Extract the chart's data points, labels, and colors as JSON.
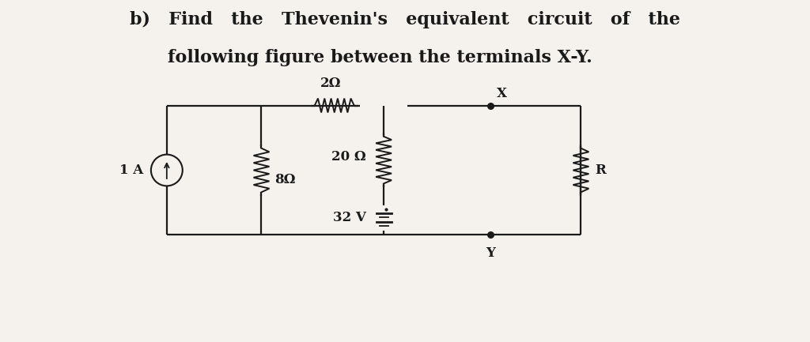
{
  "title_line1": "b)   Find   the   Thevenin's   equivalent   circuit   of   the",
  "title_line2": "following figure between the terminals X-Y.",
  "bg_color": "#f5f2ee",
  "text_color": "#1a1a1a",
  "title_fontsize": 16,
  "circuit": {
    "label_1A": "1 A",
    "label_8ohm": "8Ω",
    "label_2ohm": "2Ω",
    "label_20ohm": "20 Ω",
    "label_32V": "32 V",
    "label_R": "R",
    "label_X": "X",
    "label_Y": "Y"
  }
}
